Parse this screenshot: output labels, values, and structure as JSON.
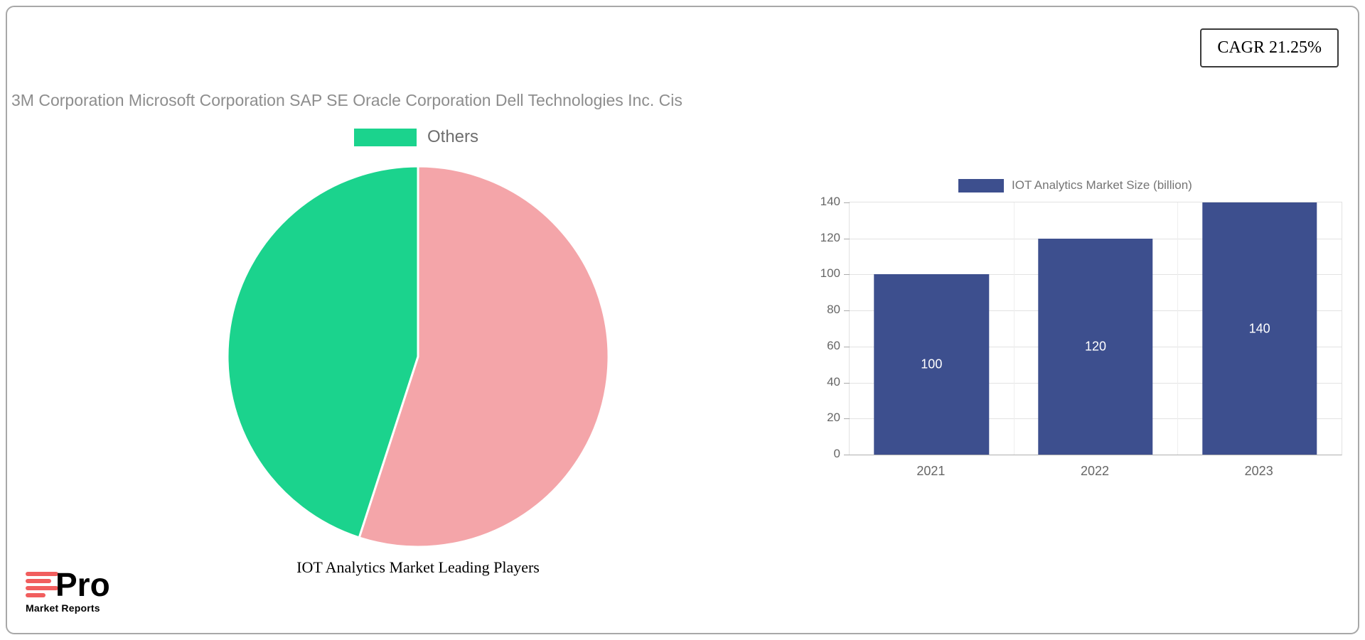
{
  "cagr": {
    "label": "CAGR 21.25%"
  },
  "logo": {
    "text": "Pro",
    "subtext": "Market Reports",
    "accent_color": "#f15e5e"
  },
  "chart_data": [
    {
      "type": "pie",
      "caption": "IOT Analytics Market Leading Players",
      "start_angle_deg": -90,
      "direction": "clockwise",
      "slices": [
        {
          "label": "3M Corporation Microsoft Corporation SAP SE Oracle Corporation Dell Technologies Inc. Cis",
          "value": 55,
          "color": "#f4a5a9"
        },
        {
          "label": "Others",
          "value": 45,
          "color": "#1bd38d"
        }
      ]
    },
    {
      "type": "bar",
      "legend": "IOT Analytics Market Size (billion)",
      "categories": [
        "2021",
        "2022",
        "2023"
      ],
      "values": [
        100,
        120,
        140
      ],
      "bar_color": "#3d4f8e",
      "value_label_color": "#ffffff",
      "ylim": [
        0,
        140
      ],
      "ytick_step": 20,
      "grid": true,
      "legend_position": "top"
    }
  ]
}
